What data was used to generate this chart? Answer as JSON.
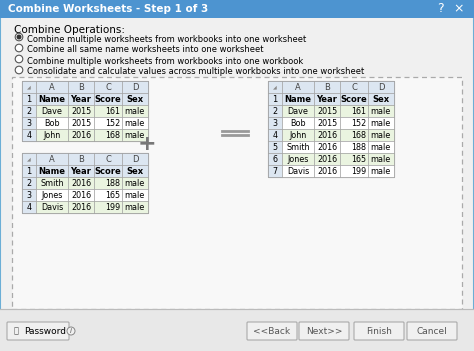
{
  "title": "Combine Worksheets - Step 1 of 3",
  "title_bar_color": "#4d94d0",
  "dialog_bg": "#f0f0f0",
  "combine_label": "Combine Operations:",
  "radio_options": [
    "Combine multiple worksheets from workbooks into one worksheet",
    "Combine all same name worksheets into one worksheet",
    "Combine multiple worksheets from workbooks into one workbook",
    "Consolidate and calculate values across multiple workbooks into one worksheet"
  ],
  "radio_selected": 0,
  "table1_col_headers": [
    "Name",
    "Year",
    "Score",
    "Sex"
  ],
  "table1_rows": [
    [
      "Dave",
      "2015",
      "161",
      "male"
    ],
    [
      "Bob",
      "2015",
      "152",
      "male"
    ],
    [
      "John",
      "2016",
      "168",
      "male"
    ]
  ],
  "table2_col_headers": [
    "Name",
    "Year",
    "Score",
    "Sex"
  ],
  "table2_rows": [
    [
      "Smith",
      "2016",
      "188",
      "male"
    ],
    [
      "Jones",
      "2016",
      "165",
      "male"
    ],
    [
      "Davis",
      "2016",
      "199",
      "male"
    ]
  ],
  "table3_col_headers": [
    "Name",
    "Year",
    "Score",
    "Sex"
  ],
  "table3_rows": [
    [
      "Dave",
      "2015",
      "161",
      "male"
    ],
    [
      "Bob",
      "2015",
      "152",
      "male"
    ],
    [
      "John",
      "2016",
      "168",
      "male"
    ],
    [
      "Smith",
      "2016",
      "188",
      "male"
    ],
    [
      "Jones",
      "2016",
      "165",
      "male"
    ],
    [
      "Davis",
      "2016",
      "199",
      "male"
    ]
  ],
  "header_bg": "#dce6f1",
  "row_even_bg": "#eaf4e0",
  "row_odd_bg": "#ffffff",
  "table_border": "#999999",
  "button_labels": [
    "<<Back",
    "Next>>",
    "Finish",
    "Cancel"
  ],
  "password_label": "Password",
  "dashed_box_color": "#aaaaaa",
  "bottom_bar_color": "#e8e8e8",
  "title_text_color": "#ffffff",
  "dialog_border_color": "#6baed6"
}
